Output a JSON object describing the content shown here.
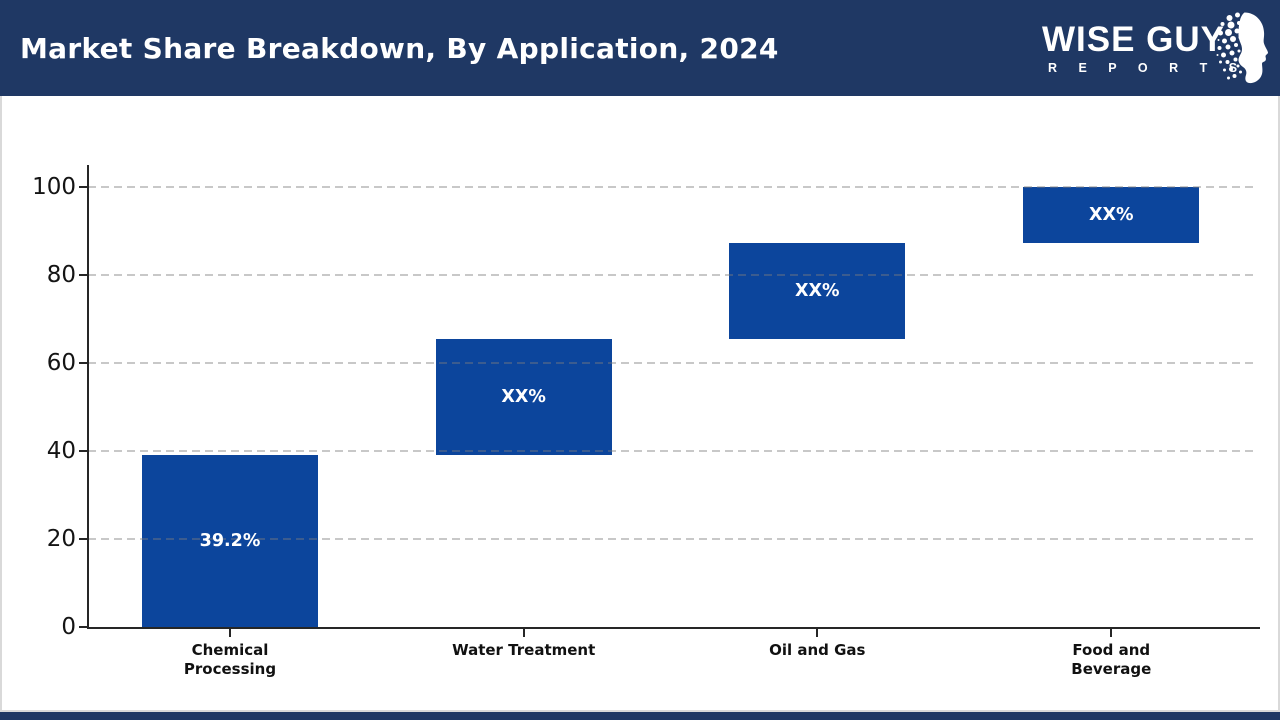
{
  "header": {
    "title": "Market Share Breakdown, By Application, 2024",
    "logo": {
      "line1": "WISE GUY",
      "line2": "R E P O R T S"
    }
  },
  "watermark": {
    "line1": "WISE GUY",
    "line2": "P O R T S"
  },
  "colors": {
    "header_bg": "#1f3864",
    "bar": "#0c459c",
    "gridline": "#d4d4d4",
    "axis": "#262626",
    "watermark": "#ededed",
    "bar_label_text": "#ffffff"
  },
  "chart_data": {
    "type": "bar",
    "subtype": "waterfall",
    "title": "Market Share Breakdown, By Application, 2024",
    "xlabel": "",
    "ylabel": "",
    "categories": [
      "Chemical Processing",
      "Water Treatment",
      "Oil and Gas",
      "Food and Beverage"
    ],
    "segments": [
      {
        "category": "Chemical Processing",
        "start": 0,
        "end": 39.2,
        "label": "39.2%"
      },
      {
        "category": "Water Treatment",
        "start": 39.2,
        "end": 65.5,
        "label": "XX%"
      },
      {
        "category": "Oil and Gas",
        "start": 65.5,
        "end": 87.3,
        "label": "XX%"
      },
      {
        "category": "Food and Beverage",
        "start": 87.3,
        "end": 100,
        "label": "XX%"
      }
    ],
    "yticks": [
      0,
      20,
      40,
      60,
      80,
      100
    ],
    "ylim": [
      0,
      105
    ],
    "grid": "horizontal-dashed",
    "legend": "none"
  }
}
